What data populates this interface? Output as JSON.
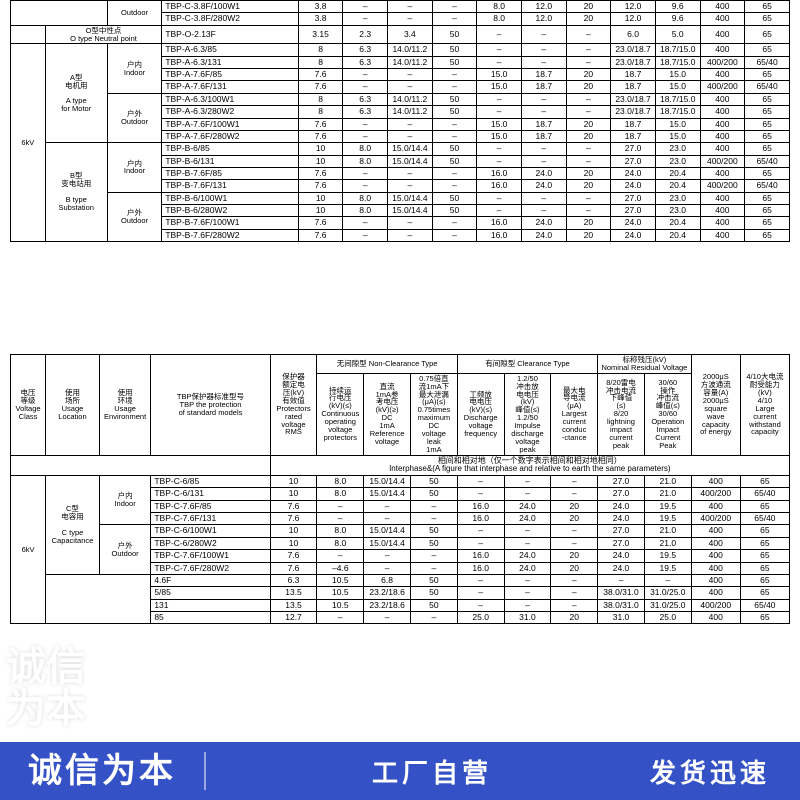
{
  "colors": {
    "banner": "#3452c6",
    "text": "#ffffff",
    "border": "#000000",
    "bg": "#ffffff"
  },
  "overlay": {
    "side1": "诚信",
    "side2": "为本",
    "b1": "诚信为本",
    "b2": "工厂自营",
    "b3": "发货迅速"
  },
  "upper": {
    "vclass": "6kV",
    "row_outdoor_label": "Outdoor",
    "row_o_label": "O型中性点\nO type Neutral point",
    "groupA": {
      "cn": "A型\n电机用",
      "en": "A type\nfor Motor"
    },
    "groupB": {
      "cn": "B型\n变电站用",
      "en": "B type\nSubstation"
    },
    "indoor": "户内\nIndoor",
    "outdoor": "户外\nOutdoor",
    "rows": [
      {
        "g": "pre-out",
        "m": "TBP-C-3.8F/100W1",
        "v": [
          "3.8",
          "–",
          "–",
          "–",
          "8.0",
          "12.0",
          "20",
          "12.0",
          "9.6",
          "400",
          "65"
        ]
      },
      {
        "g": "pre-out",
        "m": "TBP-C-3.8F/280W2",
        "v": [
          "3.8",
          "–",
          "–",
          "–",
          "8.0",
          "12.0",
          "20",
          "12.0",
          "9.6",
          "400",
          "65"
        ]
      },
      {
        "g": "o",
        "m": "TBP-O-2.13F",
        "v": [
          "3.15",
          "2.3",
          "3.4",
          "50",
          "–",
          "–",
          "–",
          "6.0",
          "5.0",
          "400",
          "65"
        ]
      },
      {
        "g": "A-in",
        "m": "TBP-A-6.3/85",
        "v": [
          "8",
          "6.3",
          "14.0/11.2",
          "50",
          "–",
          "–",
          "–",
          "23.0/18.7",
          "18.7/15.0",
          "400",
          "65"
        ]
      },
      {
        "g": "A-in",
        "m": "TBP-A-6.3/131",
        "v": [
          "8",
          "6.3",
          "14.0/11.2",
          "50",
          "–",
          "–",
          "–",
          "23.0/18.7",
          "18.7/15.0",
          "400/200",
          "65/40"
        ]
      },
      {
        "g": "A-in",
        "m": "TBP-A-7.6F/85",
        "v": [
          "7.6",
          "–",
          "–",
          "–",
          "15.0",
          "18.7",
          "20",
          "18.7",
          "15.0",
          "400",
          "65"
        ]
      },
      {
        "g": "A-in",
        "m": "TBP-A-7.6F/131",
        "v": [
          "7.6",
          "–",
          "–",
          "–",
          "15.0",
          "18.7",
          "20",
          "18.7",
          "15.0",
          "400/200",
          "65/40"
        ]
      },
      {
        "g": "A-out",
        "m": "TBP-A-6.3/100W1",
        "v": [
          "8",
          "6.3",
          "14.0/11.2",
          "50",
          "–",
          "–",
          "–",
          "23.0/18.7",
          "18.7/15.0",
          "400",
          "65"
        ]
      },
      {
        "g": "A-out",
        "m": "TBP-A-6.3/280W2",
        "v": [
          "8",
          "6.3",
          "14.0/11.2",
          "50",
          "–",
          "–",
          "–",
          "23.0/18.7",
          "18.7/15.0",
          "400",
          "65"
        ]
      },
      {
        "g": "A-out",
        "m": "TBP-A-7.6F/100W1",
        "v": [
          "7.6",
          "–",
          "–",
          "–",
          "15.0",
          "18.7",
          "20",
          "18.7",
          "15.0",
          "400",
          "65"
        ]
      },
      {
        "g": "A-out",
        "m": "TBP-A-7.6F/280W2",
        "v": [
          "7.6",
          "–",
          "–",
          "–",
          "15.0",
          "18.7",
          "20",
          "18.7",
          "15.0",
          "400",
          "65"
        ]
      },
      {
        "g": "B-in",
        "m": "TBP-B-6/85",
        "v": [
          "10",
          "8.0",
          "15.0/14.4",
          "50",
          "–",
          "–",
          "–",
          "27.0",
          "23.0",
          "400",
          "65"
        ]
      },
      {
        "g": "B-in",
        "m": "TBP-B-6/131",
        "v": [
          "10",
          "8.0",
          "15.0/14.4",
          "50",
          "–",
          "–",
          "–",
          "27.0",
          "23.0",
          "400/200",
          "65/40"
        ]
      },
      {
        "g": "B-in",
        "m": "TBP-B-7.6F/85",
        "v": [
          "7.6",
          "–",
          "–",
          "–",
          "16.0",
          "24.0",
          "20",
          "24.0",
          "20.4",
          "400",
          "65"
        ]
      },
      {
        "g": "B-in",
        "m": "TBP-B-7.6F/131",
        "v": [
          "7.6",
          "–",
          "–",
          "–",
          "16.0",
          "24.0",
          "20",
          "24.0",
          "20.4",
          "400/200",
          "65/40"
        ]
      },
      {
        "g": "B-out",
        "m": "TBP-B-6/100W1",
        "v": [
          "10",
          "8.0",
          "15.0/14.4",
          "50",
          "–",
          "–",
          "–",
          "27.0",
          "23.0",
          "400",
          "65"
        ]
      },
      {
        "g": "B-out",
        "m": "TBP-B-6/280W2",
        "v": [
          "10",
          "8.0",
          "15.0/14.4",
          "50",
          "–",
          "–",
          "–",
          "27.0",
          "23.0",
          "400",
          "65"
        ]
      },
      {
        "g": "B-out",
        "m": "TBP-B-7.6F/100W1",
        "v": [
          "7.6",
          "–",
          "–",
          "–",
          "16.0",
          "24.0",
          "20",
          "24.0",
          "20.4",
          "400",
          "65"
        ]
      },
      {
        "g": "B-out",
        "m": "TBP-B-7.6F/280W2",
        "v": [
          "7.6",
          "–",
          "–",
          "–",
          "16.0",
          "24.0",
          "20",
          "24.0",
          "20.4",
          "400",
          "65"
        ]
      }
    ]
  },
  "lower": {
    "header": {
      "c0": "电压\n等级\nVoltage\nClass",
      "c1": "使用\n场所\nUsage\nLocation",
      "c2": "使用\n环境\nUsage\nEnvironment",
      "c3": "TBP保护器标准型号\nTBP the protection\nof standard models",
      "c4": "保护器\n额定电\n压(kV)\n有效值\nProtectors\nrated\nvoltage\nRMS",
      "nc": "无间隙型 Non-Clearance Type",
      "cl": "有间隙型 Clearance Type",
      "res": "标称残压(kV)\nNominal Residual Voltage",
      "nc1": "持续运\n行电压\n(kV)(≤)\nContinuous\noperating\nvoltage\nprotectors",
      "nc2": "直流\n1mA参\n考电压\n(kV)(≥)\nDC\n1mA\nReference\nvoltage",
      "nc3": "0.75倍直\n流1mA下\n最大泄漏\n(μA)(≤)\n0.75times\nmaximum\nDC\nvoltage\nleak\n1mA",
      "cl1": "工频放\n电电压\n(kV)(≤)\nDischarge\nvoltage\nfrequency",
      "cl2": "1.2/50\n冲击放\n电电压\n(kV)\n峰值(≤)\n1.2/50\nImpulse\ndischarge\nvoltage\npeak",
      "cl3": "最大电\n导电流\n(μA)\nLargest\ncurrent\nconduc\n-ctance",
      "r1": "8/20雷电\n冲击电流\n下峰值\n(≤)\n8/20\nlightning\nimpact\ncurrent\npeak",
      "r2": "30/60\n操作\n冲击流\n峰值(≤)\n30/60\nOperation\nImpact\nCurrent\nPeak",
      "c_e": "2000μS\n方波通流\n容量(A)\n2000μS\nsquare\nwave\ncapacity\nof energy",
      "c_w": "4/10大电流\n耐受能力\n(kV)\n4/10\nLarge\ncurrent\nwithstand\ncapacity",
      "note": "相间和相对地（仅一个数字表示相间和相对地相同）\nInterphase&(A figure that interphase and relative to earth the same parameters)"
    },
    "vclass": "6kV",
    "groupC": {
      "cn": "C型\n电容用",
      "en": "C type\nCapacitance"
    },
    "indoor": "户内\nIndoor",
    "outdoor": "户外\nOutdoor",
    "rows": [
      {
        "g": "C-in",
        "m": "TBP-C-6/85",
        "v": [
          "10",
          "8.0",
          "15.0/14.4",
          "50",
          "–",
          "–",
          "–",
          "27.0",
          "21.0",
          "400",
          "65"
        ]
      },
      {
        "g": "C-in",
        "m": "TBP-C-6/131",
        "v": [
          "10",
          "8.0",
          "15.0/14.4",
          "50",
          "–",
          "–",
          "–",
          "27.0",
          "21.0",
          "400/200",
          "65/40"
        ]
      },
      {
        "g": "C-in",
        "m": "TBP-C-7.6F/85",
        "v": [
          "7.6",
          "–",
          "–",
          "–",
          "16.0",
          "24.0",
          "20",
          "24.0",
          "19.5",
          "400",
          "65"
        ]
      },
      {
        "g": "C-in",
        "m": "TBP-C-7.6F/131",
        "v": [
          "7.6",
          "–",
          "–",
          "–",
          "16.0",
          "24.0",
          "20",
          "24.0",
          "19.5",
          "400/200",
          "65/40"
        ]
      },
      {
        "g": "C-out",
        "m": "TBP-C-6/100W1",
        "v": [
          "10",
          "8.0",
          "15.0/14.4",
          "50",
          "–",
          "–",
          "–",
          "27.0",
          "21.0",
          "400",
          "65"
        ]
      },
      {
        "g": "C-out",
        "m": "TBP-C-6/280W2",
        "v": [
          "10",
          "8.0",
          "15.0/14.4",
          "50",
          "–",
          "–",
          "–",
          "27.0",
          "21.0",
          "400",
          "65"
        ]
      },
      {
        "g": "C-out",
        "m": "TBP-C-7.6F/100W1",
        "v": [
          "7.6",
          "–",
          "–",
          "–",
          "16.0",
          "24.0",
          "20",
          "24.0",
          "19.5",
          "400",
          "65"
        ]
      },
      {
        "g": "C-out",
        "m": "TBP-C-7.6F/280W2",
        "v": [
          "7.6",
          "–4.6",
          "–",
          "–",
          "16.0",
          "24.0",
          "20",
          "24.0",
          "19.5",
          "400",
          "65"
        ]
      },
      {
        "g": "x",
        "m": "4.6F",
        "v": [
          "6.3",
          "10.5",
          "6.8",
          "50",
          "–",
          "–",
          "–",
          "–",
          "–",
          "400",
          "65"
        ]
      },
      {
        "g": "x",
        "m": "5/85",
        "v": [
          "13.5",
          "10.5",
          "23.2/18.6",
          "50",
          "–",
          "–",
          "–",
          "38.0/31.0",
          "31.0/25.0",
          "400",
          "65"
        ]
      },
      {
        "g": "x",
        "m": "131",
        "v": [
          "13.5",
          "10.5",
          "23.2/18.6",
          "50",
          "–",
          "–",
          "–",
          "38.0/31.0",
          "31.0/25.0",
          "400/200",
          "65/40"
        ]
      },
      {
        "g": "x",
        "m": "85",
        "v": [
          "12.7",
          "–",
          "–",
          "–",
          "25.0",
          "31.0",
          "20",
          "31.0",
          "25.0",
          "400",
          "65"
        ]
      }
    ]
  }
}
